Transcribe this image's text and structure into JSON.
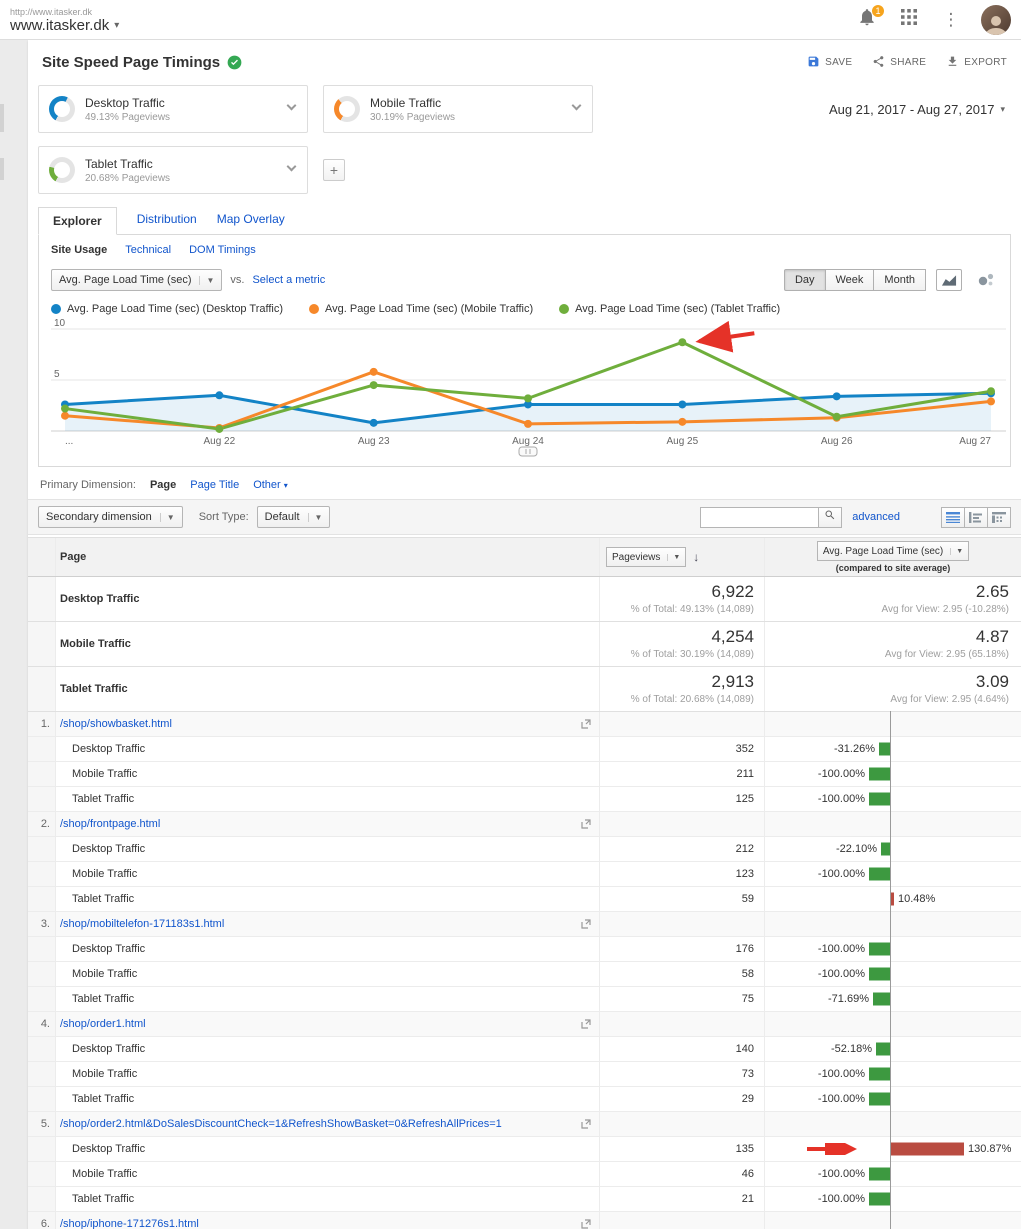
{
  "header": {
    "url_small": "http://www.itasker.dk",
    "site_name": "www.itasker.dk",
    "notification_count": "1"
  },
  "titlebar": {
    "title": "Site Speed Page Timings",
    "save_label": "SAVE",
    "share_label": "SHARE",
    "export_label": "EXPORT"
  },
  "date_range": "Aug 21, 2017 - Aug 27, 2017",
  "segments": [
    {
      "name": "Desktop Traffic",
      "sub": "49.13% Pageviews",
      "pct": 49.13,
      "color": "#1383c6"
    },
    {
      "name": "Mobile Traffic",
      "sub": "30.19% Pageviews",
      "pct": 30.19,
      "color": "#f6882a"
    },
    {
      "name": "Tablet Traffic",
      "sub": "20.68% Pageviews",
      "pct": 20.68,
      "color": "#6fae3c"
    }
  ],
  "tabs": {
    "explorer": "Explorer",
    "distribution": "Distribution",
    "map_overlay": "Map Overlay"
  },
  "subtabs": {
    "site_usage": "Site Usage",
    "technical": "Technical",
    "dom_timings": "DOM Timings"
  },
  "metric_bar": {
    "metric": "Avg. Page Load Time (sec)",
    "vs": "vs.",
    "select_metric": "Select a metric",
    "day": "Day",
    "week": "Week",
    "month": "Month"
  },
  "legend": [
    {
      "label": "Avg. Page Load Time (sec) (Desktop Traffic)",
      "color": "#1383c6"
    },
    {
      "label": "Avg. Page Load Time (sec) (Mobile Traffic)",
      "color": "#f6882a"
    },
    {
      "label": "Avg. Page Load Time (sec) (Tablet Traffic)",
      "color": "#6fae3c"
    }
  ],
  "chart_data": {
    "type": "line",
    "x": [
      "...",
      "Aug 22",
      "Aug 23",
      "Aug 24",
      "Aug 25",
      "Aug 26",
      "Aug 27"
    ],
    "ylim": [
      0,
      10
    ],
    "yticks": [
      5,
      10
    ],
    "legend_position": "top",
    "series": [
      {
        "name": "Avg. Page Load Time (sec) (Desktop Traffic)",
        "color": "#1383c6",
        "area": true,
        "values": [
          2.6,
          3.5,
          0.8,
          2.6,
          2.6,
          3.4,
          3.7
        ]
      },
      {
        "name": "Avg. Page Load Time (sec) (Mobile Traffic)",
        "color": "#f6882a",
        "values": [
          1.5,
          0.3,
          5.8,
          0.7,
          0.9,
          1.3,
          2.9
        ]
      },
      {
        "name": "Avg. Page Load Time (sec) (Tablet Traffic)",
        "color": "#6fae3c",
        "values": [
          2.2,
          0.2,
          4.5,
          3.2,
          8.7,
          1.4,
          3.9
        ]
      }
    ],
    "annotations": [
      {
        "type": "red-arrow",
        "target": "Tablet Traffic peak on Aug 25"
      },
      {
        "type": "red-arrow",
        "target": "130.87% bar in row 5 Desktop Traffic"
      }
    ]
  },
  "dimension_bar": {
    "label": "Primary Dimension:",
    "page": "Page",
    "page_title": "Page Title",
    "other": "Other"
  },
  "controls": {
    "secondary_dimension": "Secondary dimension",
    "sort_type_label": "Sort Type:",
    "sort_type_value": "Default",
    "search_value": "",
    "advanced": "advanced"
  },
  "table": {
    "col_page": "Page",
    "col_pageviews": "Pageviews",
    "col_metric": "Avg. Page Load Time (sec)",
    "col_metric_sub": "(compared to site average)",
    "bar_colors": {
      "positive": "#b94c41",
      "negative": "#3d9940"
    },
    "summary": [
      {
        "label": "Desktop Traffic",
        "pageviews": "6,922",
        "pageviews_sub": "% of Total: 49.13% (14,089)",
        "load_time": "2.65",
        "load_time_sub": "Avg for View: 2.95 (-10.28%)"
      },
      {
        "label": "Mobile Traffic",
        "pageviews": "4,254",
        "pageviews_sub": "% of Total: 30.19% (14,089)",
        "load_time": "4.87",
        "load_time_sub": "Avg for View: 2.95 (65.18%)"
      },
      {
        "label": "Tablet Traffic",
        "pageviews": "2,913",
        "pageviews_sub": "% of Total: 20.68% (14,089)",
        "load_time": "3.09",
        "load_time_sub": "Avg for View: 2.95 (4.64%)"
      }
    ],
    "groups": [
      {
        "num": "1.",
        "url": "/shop/showbasket.html",
        "rows": [
          {
            "label": "Desktop Traffic",
            "pageviews": "352",
            "pct": "-31.26%",
            "value": -31.26
          },
          {
            "label": "Mobile Traffic",
            "pageviews": "211",
            "pct": "-100.00%",
            "value": -100
          },
          {
            "label": "Tablet Traffic",
            "pageviews": "125",
            "pct": "-100.00%",
            "value": -100
          }
        ]
      },
      {
        "num": "2.",
        "url": "/shop/frontpage.html",
        "rows": [
          {
            "label": "Desktop Traffic",
            "pageviews": "212",
            "pct": "-22.10%",
            "value": -22.1
          },
          {
            "label": "Mobile Traffic",
            "pageviews": "123",
            "pct": "-100.00%",
            "value": -100
          },
          {
            "label": "Tablet Traffic",
            "pageviews": "59",
            "pct": "10.48%",
            "value": 10.48
          }
        ]
      },
      {
        "num": "3.",
        "url": "/shop/mobiltelefon-171183s1.html",
        "rows": [
          {
            "label": "Desktop Traffic",
            "pageviews": "176",
            "pct": "-100.00%",
            "value": -100
          },
          {
            "label": "Mobile Traffic",
            "pageviews": "58",
            "pct": "-100.00%",
            "value": -100
          },
          {
            "label": "Tablet Traffic",
            "pageviews": "75",
            "pct": "-71.69%",
            "value": -71.69
          }
        ]
      },
      {
        "num": "4.",
        "url": "/shop/order1.html",
        "rows": [
          {
            "label": "Desktop Traffic",
            "pageviews": "140",
            "pct": "-52.18%",
            "value": -52.18
          },
          {
            "label": "Mobile Traffic",
            "pageviews": "73",
            "pct": "-100.00%",
            "value": -100
          },
          {
            "label": "Tablet Traffic",
            "pageviews": "29",
            "pct": "-100.00%",
            "value": -100
          }
        ]
      },
      {
        "num": "5.",
        "url": "/shop/order2.html&DoSalesDiscountCheck=1&RefreshShowBasket=0&RefreshAllPrices=1",
        "rows": [
          {
            "label": "Desktop Traffic",
            "pageviews": "135",
            "pct": "130.87%",
            "value": 130.87,
            "arrow": true
          },
          {
            "label": "Mobile Traffic",
            "pageviews": "46",
            "pct": "-100.00%",
            "value": -100
          },
          {
            "label": "Tablet Traffic",
            "pageviews": "21",
            "pct": "-100.00%",
            "value": -100
          }
        ]
      },
      {
        "num": "6.",
        "url": "/shop/iphone-171276s1.html",
        "rows": []
      }
    ]
  }
}
